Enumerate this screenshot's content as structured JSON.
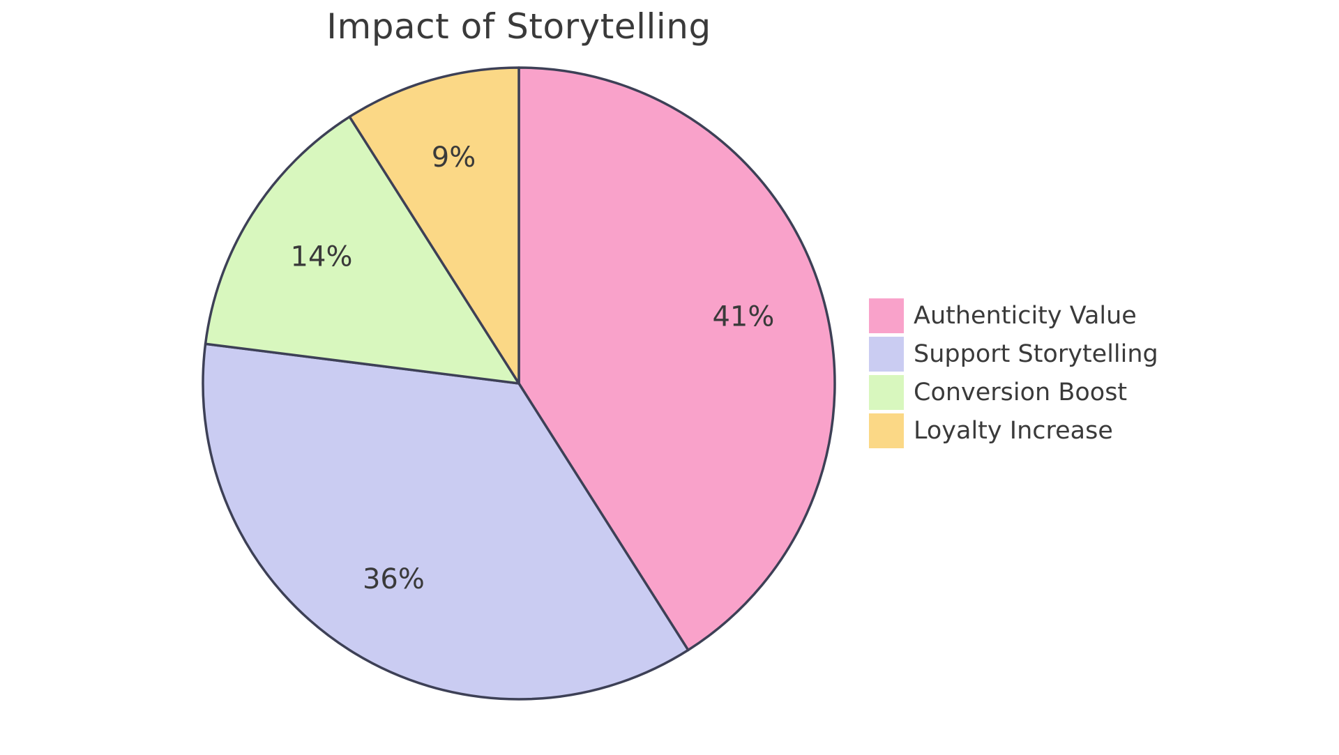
{
  "title": "Impact of Storytelling",
  "colors": {
    "background": "#ffffff",
    "text": "#3a3a3a",
    "slice_border": "#3d4056"
  },
  "chart_data": {
    "type": "pie",
    "title": "Impact of Storytelling",
    "legend_position": "right",
    "start_angle_deg": 0,
    "direction": "clockwise",
    "total": 100,
    "series": [
      {
        "name": "Authenticity Value",
        "value": 41,
        "label": "41%",
        "color": "#F9A2CA"
      },
      {
        "name": "Support Storytelling",
        "value": 36,
        "label": "36%",
        "color": "#CACCF2"
      },
      {
        "name": "Conversion Boost",
        "value": 14,
        "label": "14%",
        "color": "#D8F7BE"
      },
      {
        "name": "Loyalty Increase",
        "value": 9,
        "label": "9%",
        "color": "#FBD886"
      }
    ]
  }
}
